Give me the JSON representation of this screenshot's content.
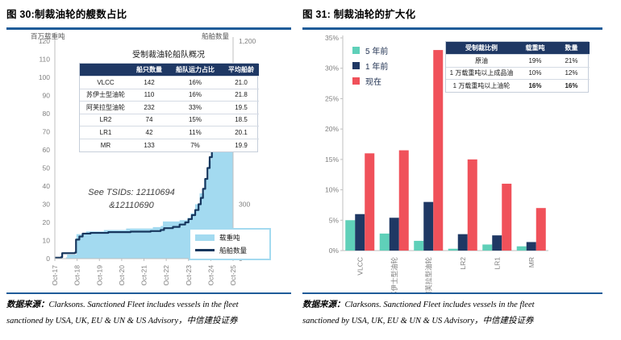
{
  "page": {
    "divider_color": "#1F5C99",
    "navy": "#1F3864"
  },
  "left": {
    "title": "图 30:制裁油轮的艘数占比",
    "table": {
      "title": "受制裁油轮船队概况",
      "headers": [
        "",
        "船只数量",
        "船队运力占比",
        "平均船龄"
      ],
      "rows": [
        [
          "VLCC",
          "142",
          "16%",
          "21.0"
        ],
        [
          "苏伊士型油轮",
          "110",
          "16%",
          "21.8"
        ],
        [
          "阿芙拉型油轮",
          "232",
          "33%",
          "19.5"
        ],
        [
          "LR2",
          "74",
          "15%",
          "18.5"
        ],
        [
          "LR1",
          "42",
          "11%",
          "20.1"
        ],
        [
          "MR",
          "133",
          "7%",
          "19.9"
        ]
      ]
    },
    "annotation_line1": "See TSIDs: 12110694",
    "annotation_line2": "&12110690",
    "source_prefix": "数据来源：",
    "source_line1": "Clarksons. Sanctioned Fleet includes vessels in the fleet",
    "source_line2": "sanctioned by USA, UK, EU & UN & US Advisory，中信建投证券"
  },
  "right": {
    "title": "图 31: 制裁油轮的扩大化",
    "table": {
      "headers": [
        "受制裁比例",
        "载重吨",
        "数量"
      ],
      "rows": [
        [
          "原油",
          "19%",
          "21%"
        ],
        [
          "1 万载重吨以上成品油",
          "10%",
          "12%"
        ],
        [
          "1 万载重吨以上油轮",
          "16%",
          "16%"
        ]
      ],
      "bold_last_row": true
    },
    "source_prefix": "数据来源：",
    "source_line1": "Clarksons. Sanctioned Fleet includes vessels in the fleet",
    "source_line2": "sanctioned by USA, UK, EU & UN & US Advisory，中信建投证券"
  },
  "chart_data": [
    {
      "type": "area",
      "title": "制裁油轮的艘数占比",
      "x_ticks": [
        "Oct-17",
        "Oct-18",
        "Oct-19",
        "Oct-20",
        "Oct-21",
        "Oct-22",
        "Oct-23",
        "Oct-24",
        "Oct-25"
      ],
      "x_max": 8,
      "left_axis": {
        "label": "百万载重吨",
        "min": 0,
        "max": 120,
        "step": 10
      },
      "right_axis": {
        "label": "船舶数量",
        "min": 0,
        "max": 1200,
        "step": 300,
        "ticks": [
          "0",
          "300",
          "600",
          "900",
          "1,200"
        ]
      },
      "grid": false,
      "legend_position": "bottom-right",
      "annotation": "See TSIDs: 12110694 &12110690",
      "series": [
        {
          "name": "载重吨",
          "type": "area",
          "axis": "left",
          "color": "#A3DAF0",
          "points": [
            [
              0,
              0
            ],
            [
              0.5,
              0.8
            ],
            [
              0.55,
              2.2
            ],
            [
              0.92,
              2.2
            ],
            [
              0.97,
              13.5
            ],
            [
              1.4,
              15
            ],
            [
              2.2,
              15.8
            ],
            [
              3.2,
              16.6
            ],
            [
              4.4,
              17.4
            ],
            [
              4.75,
              18
            ],
            [
              4.85,
              20.5
            ],
            [
              5.6,
              21.2
            ],
            [
              5.95,
              22.5
            ],
            [
              6.1,
              25
            ],
            [
              6.3,
              30
            ],
            [
              6.5,
              36
            ],
            [
              6.7,
              44
            ],
            [
              6.9,
              54
            ],
            [
              7,
              60
            ],
            [
              7.15,
              64
            ],
            [
              7.35,
              68
            ],
            [
              7.5,
              73
            ],
            [
              7.65,
              80
            ],
            [
              7.75,
              87
            ],
            [
              7.85,
              94
            ],
            [
              7.95,
              100
            ],
            [
              8,
              104
            ]
          ]
        },
        {
          "name": "船舶数量",
          "type": "line",
          "axis": "right",
          "color": "#17375E",
          "points": [
            [
              0,
              5
            ],
            [
              0.28,
              8
            ],
            [
              0.33,
              30
            ],
            [
              0.9,
              33
            ],
            [
              0.95,
              105
            ],
            [
              1.1,
              122
            ],
            [
              1.25,
              138
            ],
            [
              1.6,
              142
            ],
            [
              2.4,
              146
            ],
            [
              3.4,
              149
            ],
            [
              4.3,
              152
            ],
            [
              4.75,
              158
            ],
            [
              4.9,
              168
            ],
            [
              5.3,
              175
            ],
            [
              5.6,
              188
            ],
            [
              5.85,
              200
            ],
            [
              6,
              218
            ],
            [
              6.15,
              240
            ],
            [
              6.3,
              268
            ],
            [
              6.45,
              300
            ],
            [
              6.55,
              335
            ],
            [
              6.65,
              385
            ],
            [
              6.75,
              440
            ],
            [
              6.85,
              500
            ],
            [
              6.95,
              560
            ],
            [
              7.05,
              600
            ],
            [
              7.15,
              635
            ],
            [
              7.25,
              655
            ],
            [
              7.4,
              668
            ],
            [
              7.55,
              695
            ],
            [
              7.65,
              715
            ],
            [
              7.72,
              745
            ],
            [
              7.78,
              775
            ],
            [
              7.84,
              805
            ],
            [
              7.9,
              845
            ],
            [
              7.95,
              875
            ],
            [
              8,
              905
            ]
          ]
        }
      ]
    },
    {
      "type": "bar",
      "title": "制裁油轮的扩大化",
      "categories": [
        "VLCC",
        "苏伊士型油轮",
        "阿芙拉型油轮",
        "LR2",
        "LR1",
        "MR"
      ],
      "series": [
        {
          "name": "5 年前",
          "color": "#5FD0B9",
          "values": [
            5,
            2.8,
            1.6,
            0.3,
            1,
            0.7
          ]
        },
        {
          "name": "1 年前",
          "color": "#1F3864",
          "values": [
            6,
            5.4,
            8,
            2.7,
            2.5,
            1.4
          ]
        },
        {
          "name": "现在",
          "color": "#F0515A",
          "values": [
            16,
            16.5,
            33,
            15,
            11,
            7
          ]
        }
      ],
      "ylim": [
        0,
        35
      ],
      "ytick_step": 5,
      "ytick_suffix": "%",
      "grid": false,
      "legend_position": "top-left"
    }
  ]
}
